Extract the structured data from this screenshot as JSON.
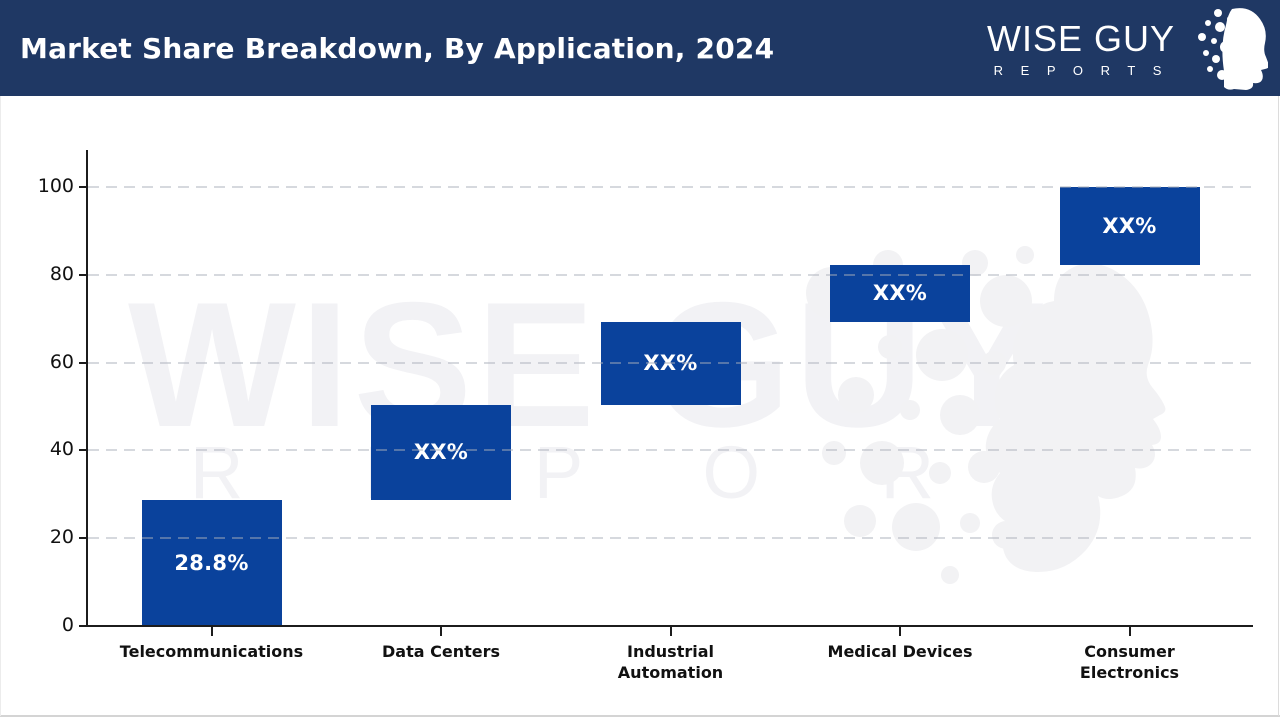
{
  "header": {
    "title": "Market Share Breakdown, By Application, 2024",
    "logo_line1": "WISE GUY",
    "logo_line2": "R E P O R T S"
  },
  "watermark": {
    "line1": "WISE GUY",
    "line2": "R E P O R T S"
  },
  "colors": {
    "header_bg": "#1f3864",
    "bar": "#0a429c",
    "bar_label": "#ffffff",
    "axis": "#1c1c1c",
    "grid_dash": "#dcdcdc",
    "tick_label": "#111111",
    "watermark": "#f2f2f5"
  },
  "chart_data": {
    "type": "bar",
    "subtype": "waterfall",
    "title": "Market Share Breakdown, By Application, 2024",
    "categories": [
      "Telecommunications",
      "Data Centers",
      "Industrial\nAutomation",
      "Medical Devices",
      "Consumer\nElectronics"
    ],
    "bars": [
      {
        "category": "Telecommunications",
        "start": 0,
        "end": 28.8,
        "label": "28.8%"
      },
      {
        "category": "Data Centers",
        "start": 28.8,
        "end": 50.3,
        "label": "XX%"
      },
      {
        "category": "Industrial Automation",
        "start": 50.3,
        "end": 69.3,
        "label": "XX%"
      },
      {
        "category": "Medical Devices",
        "start": 69.3,
        "end": 82.2,
        "label": "XX%"
      },
      {
        "category": "Consumer Electronics",
        "start": 82.2,
        "end": 100,
        "label": "XX%"
      }
    ],
    "xlabel": "",
    "ylabel": "",
    "ylim": [
      0,
      100
    ],
    "yticks": [
      0,
      20,
      40,
      60,
      80,
      100
    ],
    "grid": "horizontal-dashed",
    "legend": "none"
  }
}
